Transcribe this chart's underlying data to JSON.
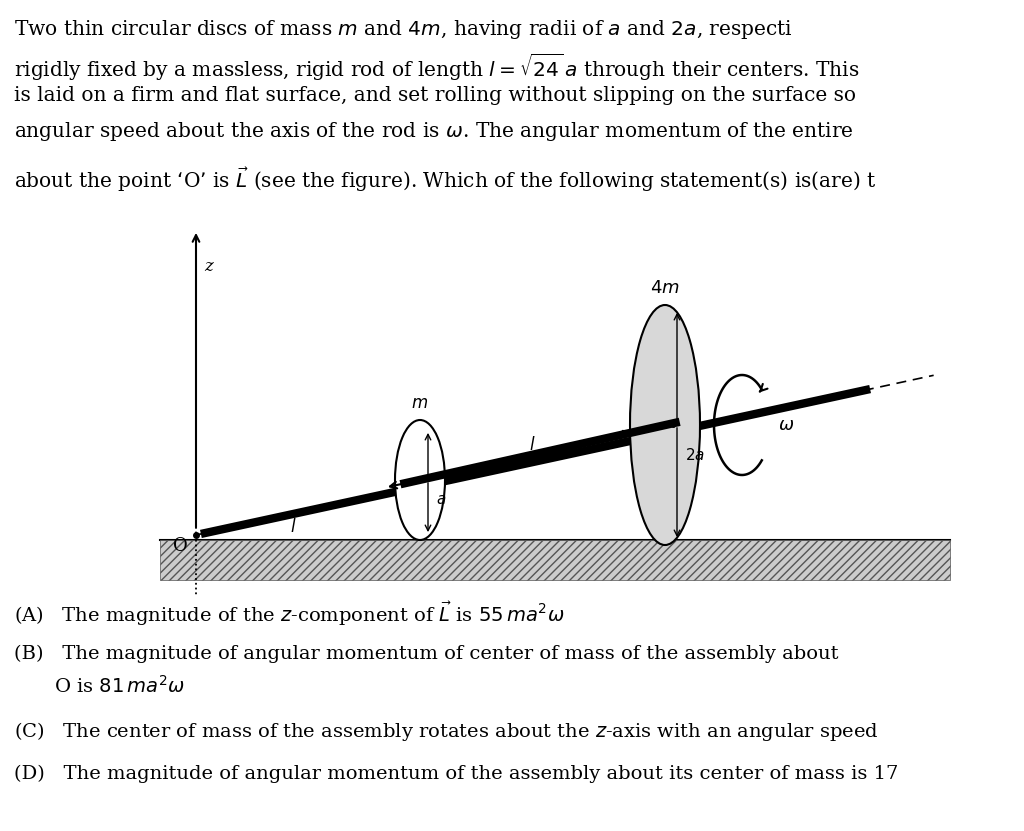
{
  "background_color": "#ffffff",
  "line1": "Two thin circular discs of mass $m$ and $4m$, having radii of $a$ and $2a$, respecti",
  "line2": "rigidly fixed by a massless, rigid rod of length $l=\\sqrt{24}\\,a$ through their centers. This",
  "line3": "is laid on a firm and flat surface, and set rolling without slipping on the surface so",
  "line4": "angular speed about the axis of the rod is $\\omega$. The angular momentum of the entire",
  "line5": "about the point ‘O’ is $\\vec{L}$ (see the figure). Which of the following statement(s) is(are) t",
  "opt_A": "(A)   The magnitude of the $z$-component of $\\vec{L}$ is $55\\,ma^2\\omega$",
  "opt_B1": "(B)   The magnitude of angular momentum of center of mass of the assembly about",
  "opt_B2": "        O is $81\\,ma^2\\omega$",
  "opt_C": "(C)   The center of mass of the assembly rotates about the $z$-axis with an angular speed",
  "opt_D": "(D)   The magnitude of angular momentum of the assembly about its center of mass is 17",
  "fontsize": 14.5,
  "fontsize_opt": 14
}
